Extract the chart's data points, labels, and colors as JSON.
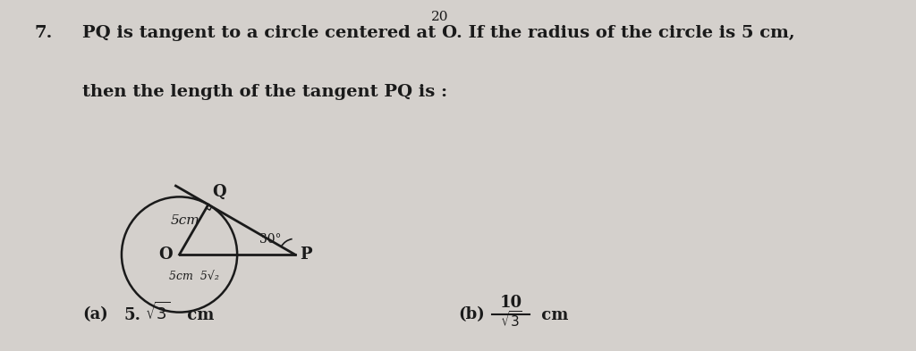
{
  "bg_color": "#d4d0cc",
  "text_color": "#1a1a1a",
  "question_number": "7.",
  "question_text": "PQ is tangent to a circle centered at O. If the radius of the circle is 5 cm,",
  "question_text2": "then the length of the tangent PQ is :",
  "page_number": "20",
  "radius_label": "5cm",
  "angle_label": "30°",
  "label_O": "O",
  "label_P": "P",
  "label_Q": "Q",
  "below_line_label": "5cm  5√₂",
  "answer_label_a": "(a)",
  "answer_a": "5.",
  "answer_a_sqrt": "3",
  "answer_a_unit": " cm",
  "answer_label_b": "(b)",
  "answer_b_num": "10",
  "answer_b_denom": "√3",
  "answer_b_unit": " cm",
  "line_color": "#1a1a1a"
}
